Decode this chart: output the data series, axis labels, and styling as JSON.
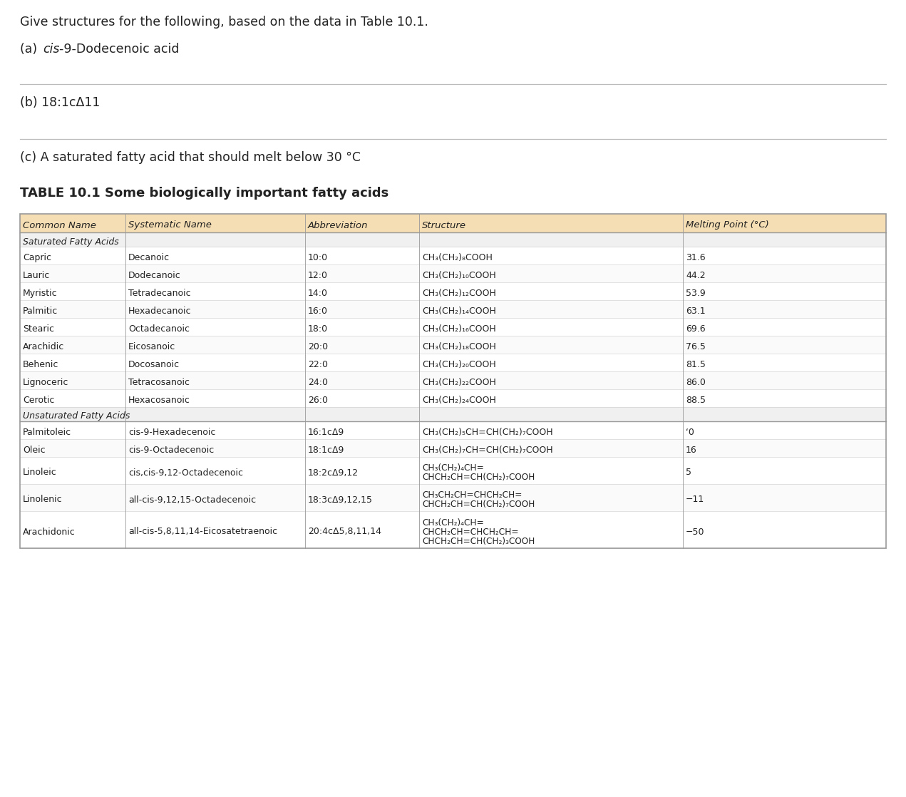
{
  "title_text": "Give structures for the following, based on the data in Table 10.1.",
  "question_a_prefix": "(a) ",
  "question_a_italic": "cis",
  "question_a_suffix": "-9-Dodecenoic acid",
  "question_b": "(b) 18:1cΔ11",
  "question_c": "(c) A saturated fatty acid that should melt below 30 °C",
  "table_title": "TABLE 10.1 Some biologically important fatty acids",
  "header_bg": "#F5DEB3",
  "section_bg": "#F0F0F0",
  "white_row": "#FFFFFF",
  "light_row": "#FAFAFA",
  "border_color": "#999999",
  "light_line": "#CCCCCC",
  "text_color": "#222222",
  "bg_color": "#FFFFFF",
  "col_headers": [
    "Common Name",
    "Systematic Name",
    "Abbreviation",
    "Structure",
    "Melting Point (°C)"
  ],
  "saturated_label": "Saturated Fatty Acids",
  "unsaturated_label": "Unsaturated Fatty Acids",
  "saturated_rows": [
    [
      "Capric",
      "Decanoic",
      "10:0",
      "CH₃(CH₂)₈COOH",
      "31.6"
    ],
    [
      "Lauric",
      "Dodecanoic",
      "12:0",
      "CH₃(CH₂)₁₀COOH",
      "44.2"
    ],
    [
      "Myristic",
      "Tetradecanoic",
      "14:0",
      "CH₃(CH₂)₁₂COOH",
      "53.9"
    ],
    [
      "Palmitic",
      "Hexadecanoic",
      "16:0",
      "CH₃(CH₂)₁₄COOH",
      "63.1"
    ],
    [
      "Stearic",
      "Octadecanoic",
      "18:0",
      "CH₃(CH₂)₁₆COOH",
      "69.6"
    ],
    [
      "Arachidic",
      "Eicosanoic",
      "20:0",
      "CH₃(CH₂)₁₈COOH",
      "76.5"
    ],
    [
      "Behenic",
      "Docosanoic",
      "22:0",
      "CH₃(CH₂)₂₀COOH",
      "81.5"
    ],
    [
      "Lignoceric",
      "Tetracosanoic",
      "24:0",
      "CH₃(CH₂)₂₂COOH",
      "86.0"
    ],
    [
      "Cerotic",
      "Hexacosanoic",
      "26:0",
      "CH₃(CH₂)₂₄COOH",
      "88.5"
    ]
  ],
  "unsaturated_rows": [
    [
      "Palmitoleic",
      "cis-9-Hexadecenoic",
      "16:1cΔ9",
      "CH₃(CH₂)₅CH=CH(CH₂)₇COOH",
      "‘0"
    ],
    [
      "Oleic",
      "cis-9-Octadecenoic",
      "18:1cΔ9",
      "CH₃(CH₂)₇CH=CH(CH₂)₇COOH",
      "16"
    ],
    [
      "Linoleic",
      "cis,cis-9,12-Octadecenoic",
      "18:2cΔ9,12",
      "CH₃(CH₂)₄CH=\nCHCH₂CH=CH(CH₂)₇COOH",
      "5"
    ],
    [
      "Linolenic",
      "all-cis-9,12,15-Octadecenoic",
      "18:3cΔ9,12,15",
      "CH₃CH₂CH=CHCH₂CH=\nCHCH₂CH=CH(CH₂)₇COOH",
      "−11"
    ],
    [
      "Arachidonic",
      "all-cis-5,8,11,14-Eicosatetraenoic",
      "20:4cΔ5,8,11,14",
      "CH₃(CH₂)₄CH=\nCHCH₂CH=CHCH₂CH=\nCHCH₂CH=CH(CH₂)₃COOH",
      "−50"
    ]
  ],
  "font_size_title": 12.5,
  "font_size_questions": 12.5,
  "font_size_table_title": 13,
  "font_size_header": 9.5,
  "font_size_body": 9.0
}
